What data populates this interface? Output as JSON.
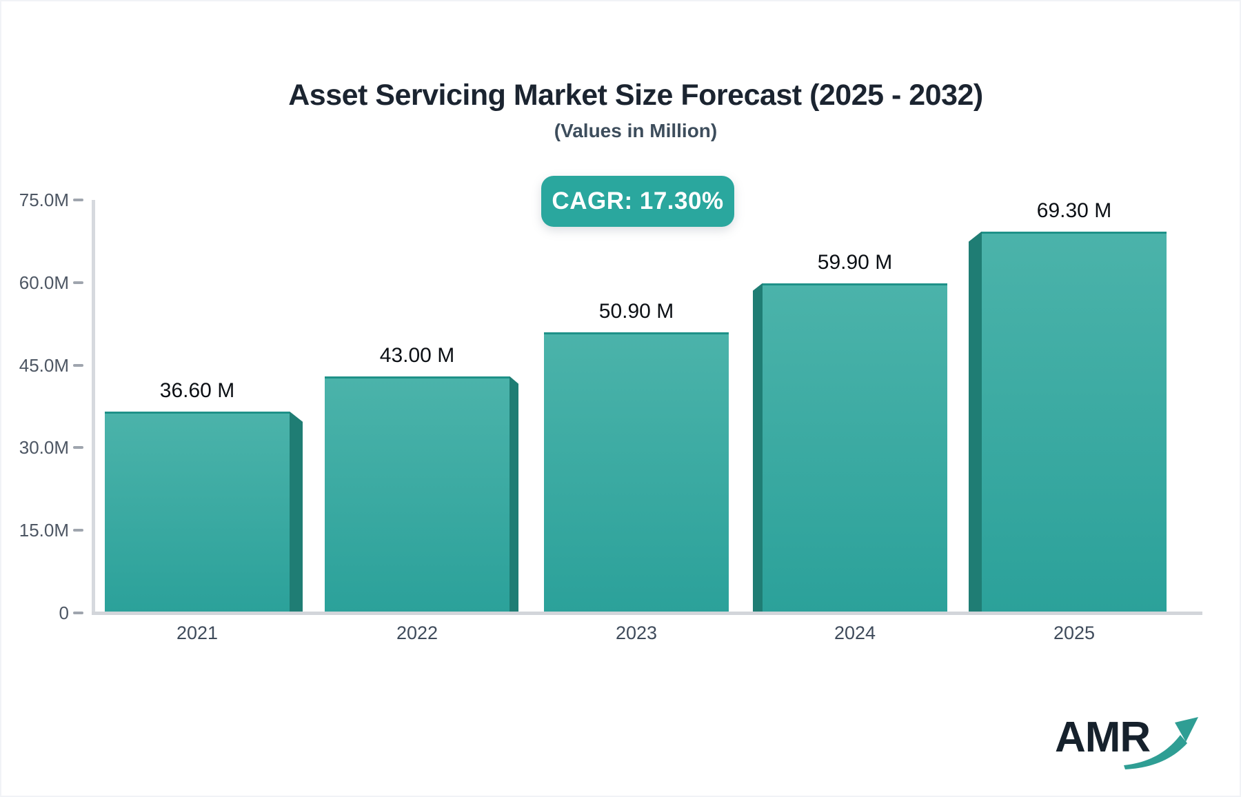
{
  "header": {
    "title": "Asset Servicing Market Size Forecast (2025 - 2032)",
    "subtitle": "(Values in Million)"
  },
  "cagr_badge": {
    "label": "CAGR: 17.30%",
    "color": "#2aa79e"
  },
  "chart_data": {
    "type": "bar",
    "title": "Asset Servicing Market Size Forecast (2025 - 2032)",
    "subtitle": "(Values in Million)",
    "unit": "Million",
    "cagr_percent": 17.3,
    "categories": [
      "2021",
      "2022",
      "2023",
      "2024",
      "2025"
    ],
    "values": [
      36.6,
      43.0,
      50.9,
      59.9,
      69.3
    ],
    "value_labels": [
      "36.60 M",
      "43.00 M",
      "50.90 M",
      "59.90 M",
      "69.30 M"
    ],
    "ylim": [
      0,
      75
    ],
    "yticks": [
      {
        "value": 0,
        "label": "0"
      },
      {
        "value": 15,
        "label": "15.0M"
      },
      {
        "value": 30,
        "label": "30.0M"
      },
      {
        "value": 45,
        "label": "45.0M"
      },
      {
        "value": 60,
        "label": "60.0M"
      },
      {
        "value": 75,
        "label": "75.0M"
      }
    ],
    "grid": false,
    "legend": "none",
    "bar_color_top": "#4bb3aa",
    "bar_color_bottom": "#2ba19a",
    "bar_side_color": "#1f7d74",
    "bar_top_edge_color": "#1e9188"
  },
  "logo": {
    "text": "AMR",
    "text_color": "#16212c",
    "arrow_color": "#2f9e94"
  }
}
